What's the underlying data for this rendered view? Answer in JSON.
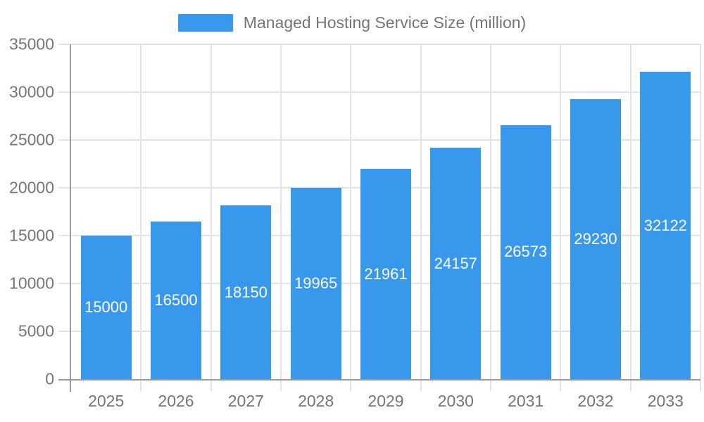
{
  "chart_data": {
    "type": "bar",
    "title": "",
    "legend": "Managed Hosting Service Size (million)",
    "legend_position": "top",
    "categories": [
      "2025",
      "2026",
      "2027",
      "2028",
      "2029",
      "2030",
      "2031",
      "2032",
      "2033"
    ],
    "values": [
      15000,
      16500,
      18150,
      19965,
      21961,
      24157,
      26573,
      29230,
      32122
    ],
    "value_labels_inside_bars": true,
    "xlabel": "",
    "ylabel": "",
    "ylim": [
      0,
      35000
    ],
    "ytick_step": 5000,
    "yticks": [
      0,
      5000,
      10000,
      15000,
      20000,
      25000,
      30000,
      35000
    ],
    "grid": true,
    "colors": {
      "bar": "#3898ec",
      "grid": "#e3e3e3",
      "axis": "#9a9a9a",
      "tick_label": "#757575",
      "legend_text": "#757575",
      "value_label": "#ffffff",
      "background": "#ffffff"
    }
  }
}
